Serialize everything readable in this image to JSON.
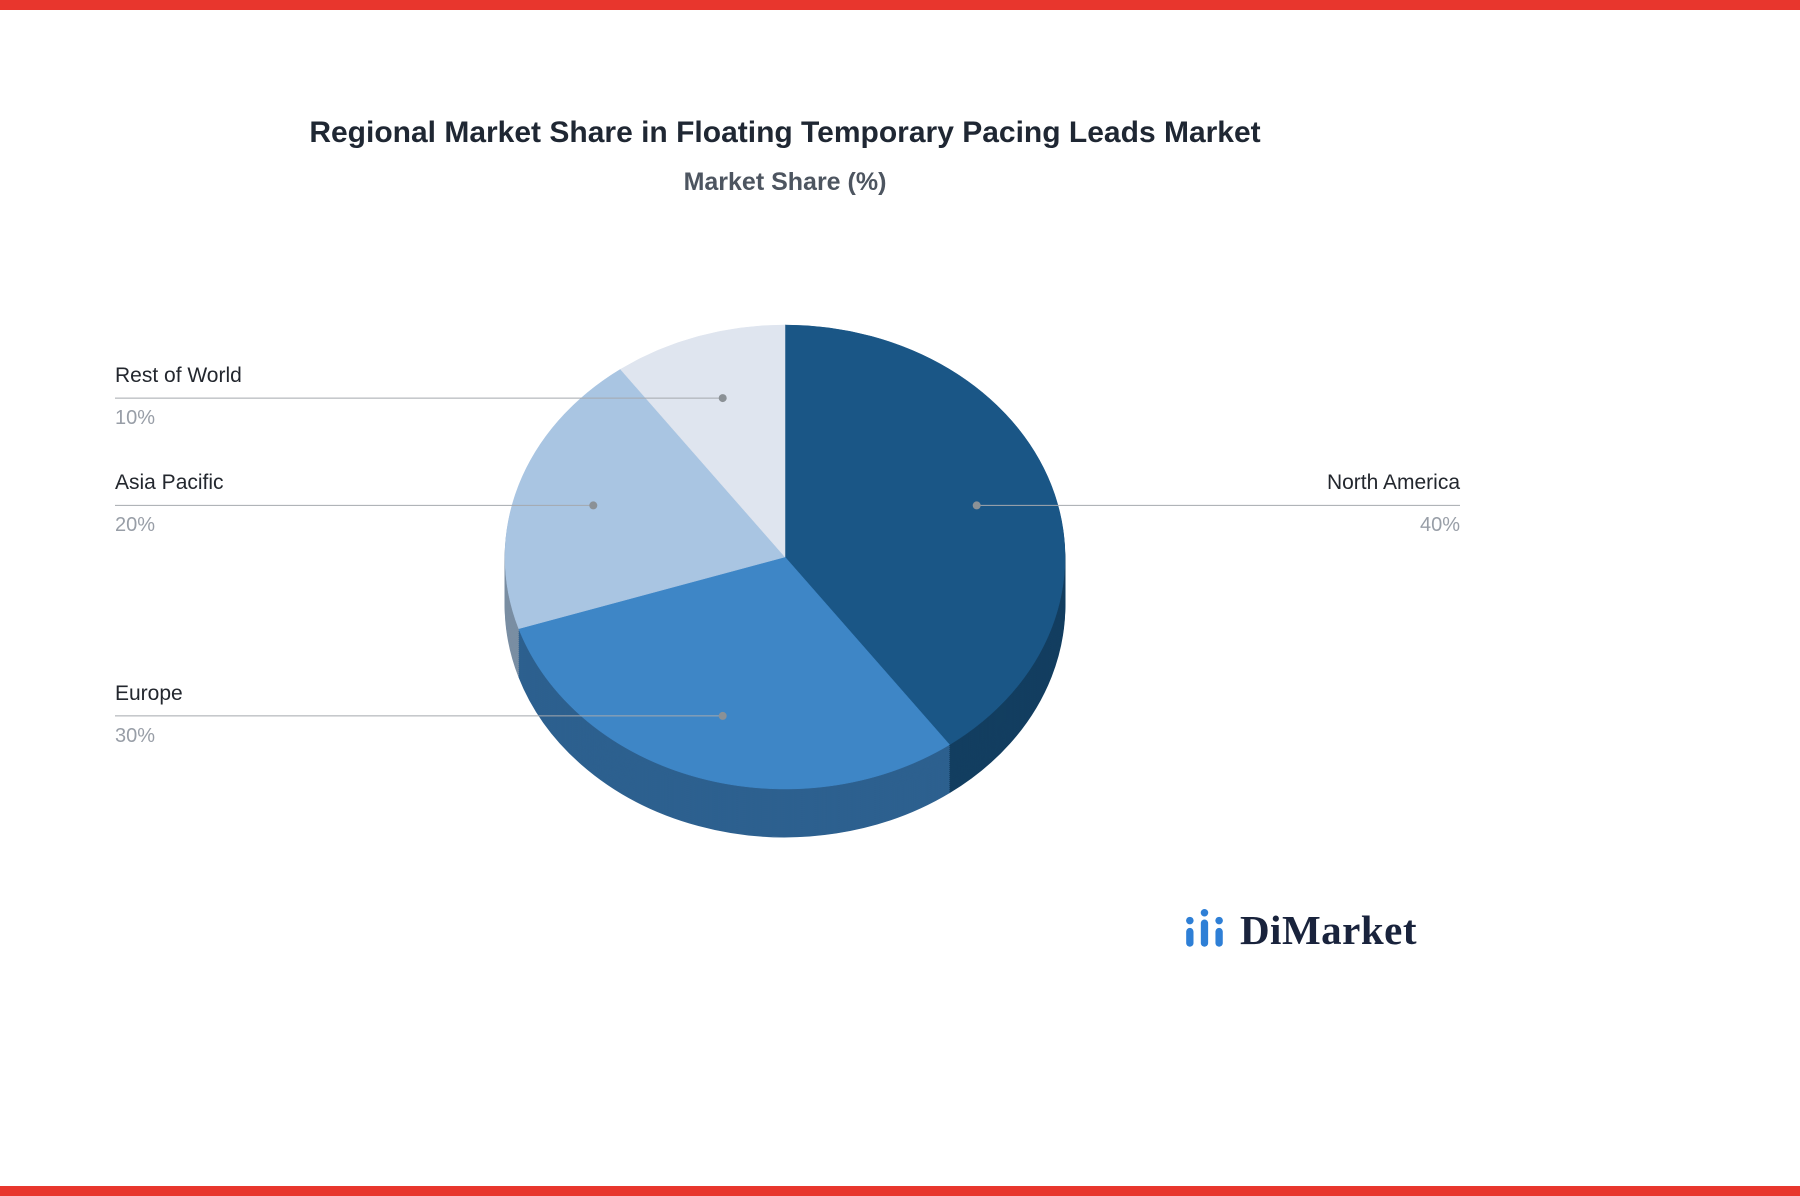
{
  "page": {
    "background": "#ffffff",
    "accent_bar_color": "#e8362d"
  },
  "header": {
    "title": "Regional Market Share in Floating Temporary Pacing Leads Market",
    "subtitle": "Market Share (%)"
  },
  "chart_data": {
    "type": "pie",
    "title": "Regional Market Share in Floating Temporary Pacing Leads Market",
    "subtitle": "Market Share (%)",
    "unit": "%",
    "start_angle": "top",
    "direction": "clockwise",
    "effect": "3d-depth",
    "legend_position": "callout-labels",
    "slices": [
      {
        "label": "North America",
        "value": 40,
        "display": "40%",
        "color": "#1a5686"
      },
      {
        "label": "Europe",
        "value": 30,
        "display": "30%",
        "color": "#3e86c6"
      },
      {
        "label": "Asia Pacific",
        "value": 20,
        "display": "20%",
        "color": "#a9c5e2"
      },
      {
        "label": "Rest of World",
        "value": 10,
        "display": "10%",
        "color": "#dfe5ef"
      }
    ]
  },
  "branding": {
    "logo_text": "DiMarket",
    "logo_icon": "bar-chart-icon",
    "logo_color": "#19233c",
    "icon_color": "#2e7fd6"
  }
}
